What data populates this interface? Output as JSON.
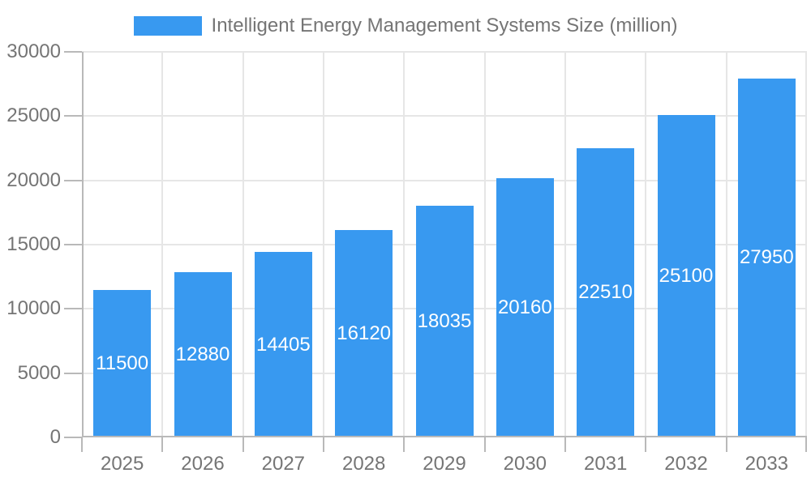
{
  "chart_data": {
    "type": "bar",
    "title": "Intelligent Energy Management Systems Size (million)",
    "legend": "Intelligent Energy Management Systems Size (million)",
    "legend_position": "top",
    "categories": [
      "2025",
      "2026",
      "2027",
      "2028",
      "2029",
      "2030",
      "2031",
      "2032",
      "2033"
    ],
    "values": [
      11500,
      12880,
      14405,
      16120,
      18035,
      20160,
      22510,
      25100,
      27950
    ],
    "xlabel": "",
    "ylabel": "",
    "ylim": [
      0,
      30000
    ],
    "y_ticks": [
      0,
      5000,
      10000,
      15000,
      20000,
      25000,
      30000
    ],
    "grid": true,
    "bar_labels_inside": true
  },
  "colors": {
    "bar": "#3899F0",
    "grid": "#E6E6E6",
    "axis": "#B9B9B9",
    "text": "#757575",
    "value_label": "#FFFFFF",
    "background": "#FFFFFF"
  }
}
